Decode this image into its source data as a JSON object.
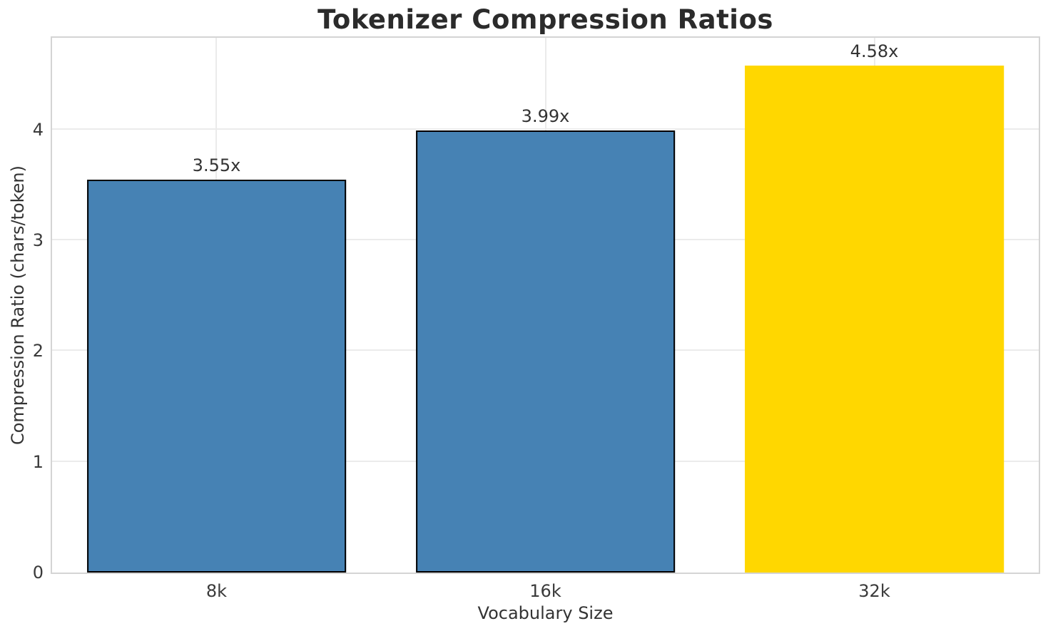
{
  "chart_data": {
    "type": "bar",
    "title": "Tokenizer Compression Ratios",
    "xlabel": "Vocabulary Size",
    "ylabel": "Compression Ratio (chars/token)",
    "categories": [
      "8k",
      "16k",
      "32k"
    ],
    "values": [
      3.55,
      3.99,
      4.58
    ],
    "bar_labels": [
      "3.55x",
      "3.99x",
      "4.58x"
    ],
    "bar_colors": [
      "#4682B4",
      "#4682B4",
      "#FFD700"
    ],
    "bar_edge_colors": [
      "#000000",
      "#000000",
      "#FFD700"
    ],
    "highlight_category": "32k",
    "yticks": [
      0,
      1,
      2,
      3,
      4
    ],
    "ylim": [
      0,
      4.83
    ],
    "bar_width_fraction": 0.263,
    "grid": true,
    "legend_position": "none",
    "styles": {
      "bar_default_color": "#4682B4",
      "bar_highlight_color": "#FFD700",
      "bar_edge_color": "#000000",
      "grid_color": "#ebebeb",
      "spine_color": "#d4d4d4",
      "tick_text_color": "#3a3a3a",
      "label_text_color": "#333333",
      "title_color": "#2b2b2b",
      "background_color": "#ffffff"
    }
  }
}
